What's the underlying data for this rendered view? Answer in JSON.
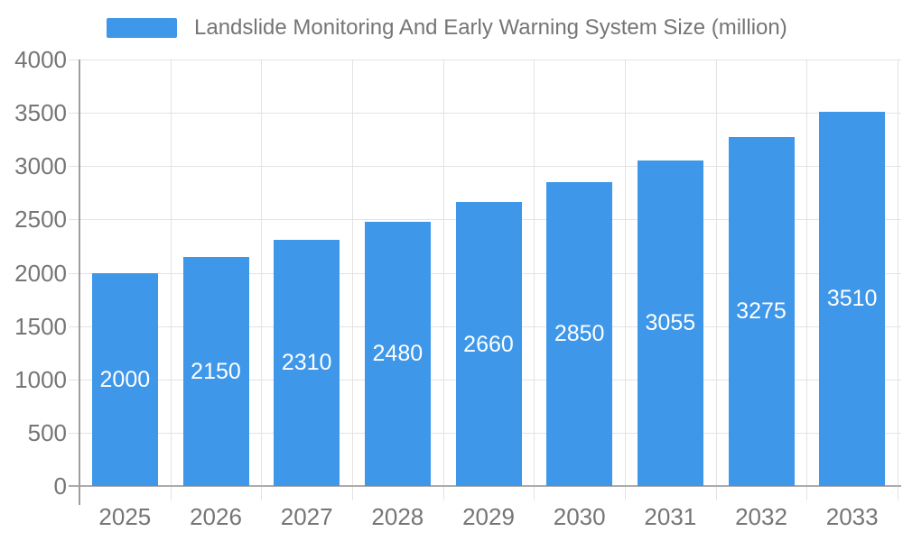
{
  "chart_data": {
    "type": "bar",
    "title": "Landslide Monitoring And Early Warning System Size (million)",
    "categories": [
      "2025",
      "2026",
      "2027",
      "2028",
      "2029",
      "2030",
      "2031",
      "2032",
      "2033"
    ],
    "values": [
      2000,
      2150,
      2310,
      2480,
      2660,
      2850,
      3055,
      3275,
      3510
    ],
    "xlabel": "",
    "ylabel": "",
    "ylim": [
      0,
      4000
    ],
    "yticks": [
      0,
      500,
      1000,
      1500,
      2000,
      2500,
      3000,
      3500,
      4000
    ],
    "grid": true,
    "legend_position": "top",
    "bar_labels_inside": true
  },
  "colors": {
    "bar": "#3E97E9",
    "bar_label_text": "#FFFFFF",
    "axis_text": "#757575",
    "title_text": "#757575",
    "gridline": "#E3E3E3",
    "axis_line": "#9E9E9E",
    "baseline": "#ABABAB",
    "background": "#FFFFFF"
  }
}
